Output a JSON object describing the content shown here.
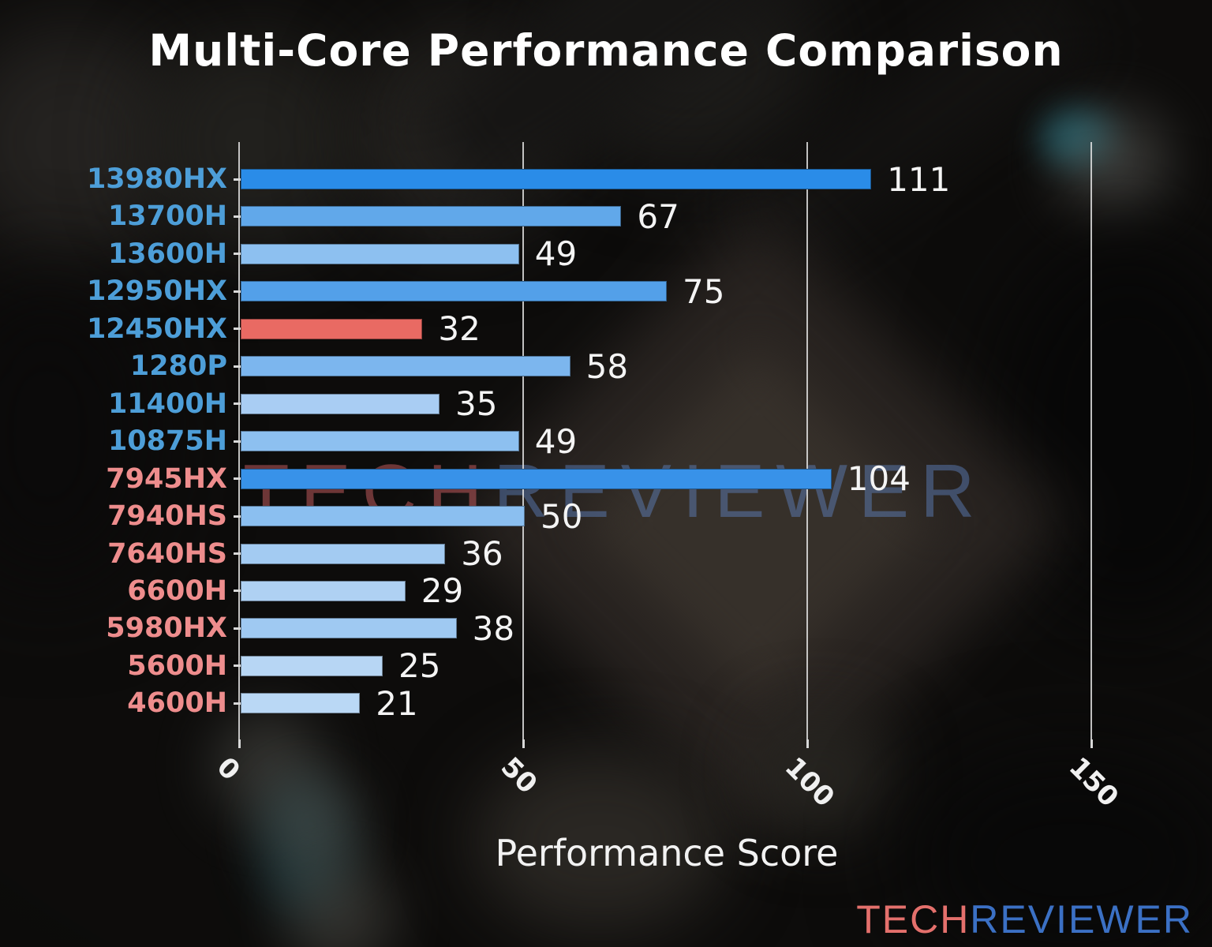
{
  "title": "Multi-Core Performance Comparison",
  "xlabel": "Performance Score",
  "watermark": {
    "tech": "TECH",
    "reviewer": "REVIEWER"
  },
  "logo": {
    "tech": "TECH",
    "reviewer": "REVIEWER"
  },
  "colors": {
    "intel_label": "#4d9ed8",
    "amd_label": "#ee8d8d",
    "highlight_bar": "#e96a63",
    "value_text": "#f4f4f4",
    "gridline": "#e8e8e8",
    "logo_tech": "#e4706c",
    "logo_reviewer": "#3b70c4"
  },
  "chart_data": {
    "type": "bar",
    "orientation": "horizontal",
    "title": "Multi-Core Performance Comparison",
    "xlabel": "Performance Score",
    "xlim": [
      0,
      160
    ],
    "xticks": [
      0,
      50,
      100,
      150
    ],
    "grid": true,
    "legend": false,
    "categories": [
      "13980HX",
      "13700H",
      "13600H",
      "12950HX",
      "12450HX",
      "1280P",
      "11400H",
      "10875H",
      "7945HX",
      "7940HS",
      "7640HS",
      "6600H",
      "5980HX",
      "5600H",
      "4600H"
    ],
    "values": [
      111,
      67,
      49,
      75,
      32,
      58,
      35,
      49,
      104,
      50,
      36,
      29,
      38,
      25,
      21
    ],
    "bars": [
      {
        "label": "13980HX",
        "value": 111,
        "vendor": "intel",
        "bar_color": "#2a8ce8"
      },
      {
        "label": "13700H",
        "value": 67,
        "vendor": "intel",
        "bar_color": "#61a8ea"
      },
      {
        "label": "13600H",
        "value": 49,
        "vendor": "intel",
        "bar_color": "#8dc0f0"
      },
      {
        "label": "12950HX",
        "value": 75,
        "vendor": "intel",
        "bar_color": "#53a0e9"
      },
      {
        "label": "12450HX",
        "value": 32,
        "vendor": "intel",
        "bar_color": "#e96a63",
        "highlight": true
      },
      {
        "label": "1280P",
        "value": 58,
        "vendor": "intel",
        "bar_color": "#7cb6ee"
      },
      {
        "label": "11400H",
        "value": 35,
        "vendor": "intel",
        "bar_color": "#a9cdf3"
      },
      {
        "label": "10875H",
        "value": 49,
        "vendor": "intel",
        "bar_color": "#8dc0f0"
      },
      {
        "label": "7945HX",
        "value": 104,
        "vendor": "amd",
        "bar_color": "#3892e9"
      },
      {
        "label": "7940HS",
        "value": 50,
        "vendor": "amd",
        "bar_color": "#8bbff0"
      },
      {
        "label": "7640HS",
        "value": 36,
        "vendor": "amd",
        "bar_color": "#a3cbf2"
      },
      {
        "label": "6600H",
        "value": 29,
        "vendor": "amd",
        "bar_color": "#afd1f3"
      },
      {
        "label": "5980HX",
        "value": 38,
        "vendor": "amd",
        "bar_color": "#9fc9f2"
      },
      {
        "label": "5600H",
        "value": 25,
        "vendor": "amd",
        "bar_color": "#b7d6f4"
      },
      {
        "label": "4600H",
        "value": 21,
        "vendor": "amd",
        "bar_color": "#bad8f5"
      }
    ]
  }
}
